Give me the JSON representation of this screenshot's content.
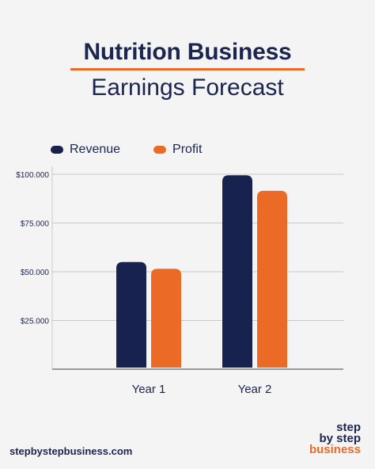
{
  "header": {
    "title_line1": "Nutrition Business",
    "title_line2": "Earnings Forecast"
  },
  "colors": {
    "revenue": "#17224e",
    "profit": "#ea6a26",
    "grid": "#c9c9c9",
    "text": "#1b2550"
  },
  "chart_data": {
    "type": "bar",
    "categories": [
      "Year 1",
      "Year 2"
    ],
    "series": [
      {
        "name": "Revenue",
        "values": [
          55000,
          99500
        ]
      },
      {
        "name": "Profit",
        "values": [
          51500,
          91500
        ]
      }
    ],
    "yticks": [
      25000,
      50000,
      75000,
      100000
    ],
    "ytick_labels": [
      "$25.000",
      "$50.000",
      "$75.000",
      "$100.000"
    ],
    "ylim": [
      0,
      100000
    ],
    "grid": true,
    "legend": "top-left"
  },
  "footer": {
    "url": "stepbystepbusiness.com",
    "brand_line1": "step",
    "brand_line2": "by step",
    "brand_line3": "business"
  }
}
